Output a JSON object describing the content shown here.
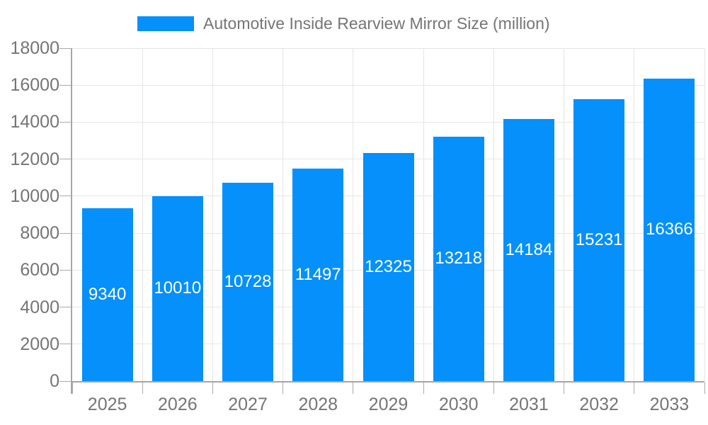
{
  "chart_data": {
    "type": "bar",
    "title": "Automotive Inside Rearview Mirror Size (million)",
    "categories": [
      "2025",
      "2026",
      "2027",
      "2028",
      "2029",
      "2030",
      "2031",
      "2032",
      "2033"
    ],
    "values": [
      9340,
      10010,
      10728,
      11497,
      12325,
      13218,
      14184,
      15231,
      16366
    ],
    "bar_value_labels": [
      "9340",
      "10010",
      "10728",
      "11497",
      "12325",
      "13218",
      "14184",
      "15231",
      "16366"
    ],
    "xlabel": "",
    "ylabel": "",
    "ylim": [
      0,
      18000
    ],
    "y_tick_values": [
      0,
      2000,
      4000,
      6000,
      8000,
      10000,
      12000,
      14000,
      16000,
      18000
    ],
    "y_tick_labels": [
      "0",
      "2000",
      "4000",
      "6000",
      "8000",
      "10000",
      "12000",
      "14000",
      "16000",
      "18000"
    ],
    "legend_position": "top",
    "grid": true,
    "colors": {
      "bar": "#0590fb",
      "bar_value_text": "#ffffff",
      "axis_text": "#757575",
      "legend_text": "#757575",
      "gridline": "#e6e6e6",
      "axis_line": "#a6a6a6",
      "tick": "#ababab",
      "background": "#ffffff"
    }
  }
}
